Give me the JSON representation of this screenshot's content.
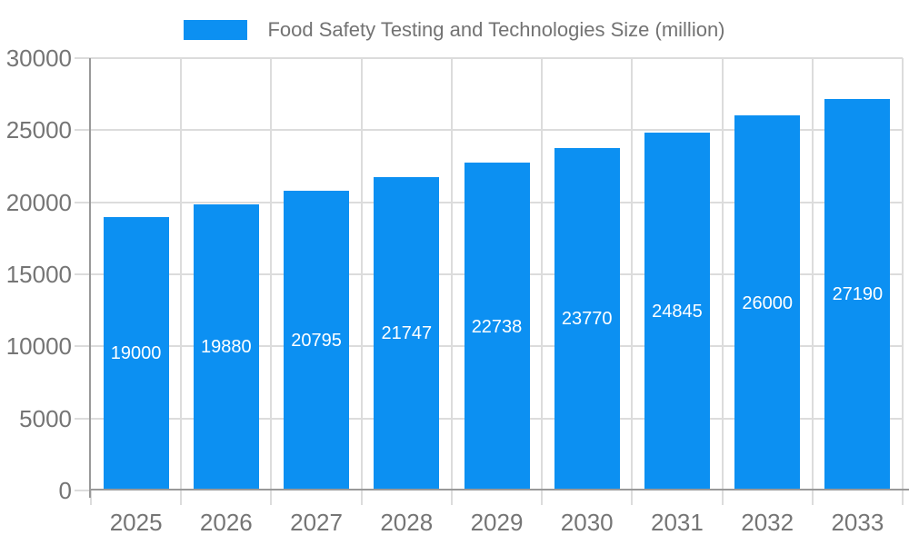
{
  "chart_data": {
    "type": "bar",
    "title": "Food Safety Testing and Technologies Size (million)",
    "categories": [
      "2025",
      "2026",
      "2027",
      "2028",
      "2029",
      "2030",
      "2031",
      "2032",
      "2033"
    ],
    "values": [
      19000,
      19880,
      20795,
      21747,
      22738,
      23770,
      24845,
      26000,
      27190
    ],
    "xlabel": "",
    "ylabel": "",
    "ylim": [
      0,
      30000
    ],
    "yticks": [
      0,
      5000,
      10000,
      15000,
      20000,
      25000,
      30000
    ],
    "grid": true,
    "legend_position": "top",
    "legend_entries": [
      "Food Safety Testing and Technologies Size (million)"
    ],
    "colors": {
      "bar": "#0C90F2",
      "data_label": "#FFFFFF",
      "axis": "#999999",
      "grid": "#DCDCDC",
      "tick_label": "#757575",
      "title": "#737373",
      "background": "#FFFFFF"
    }
  }
}
